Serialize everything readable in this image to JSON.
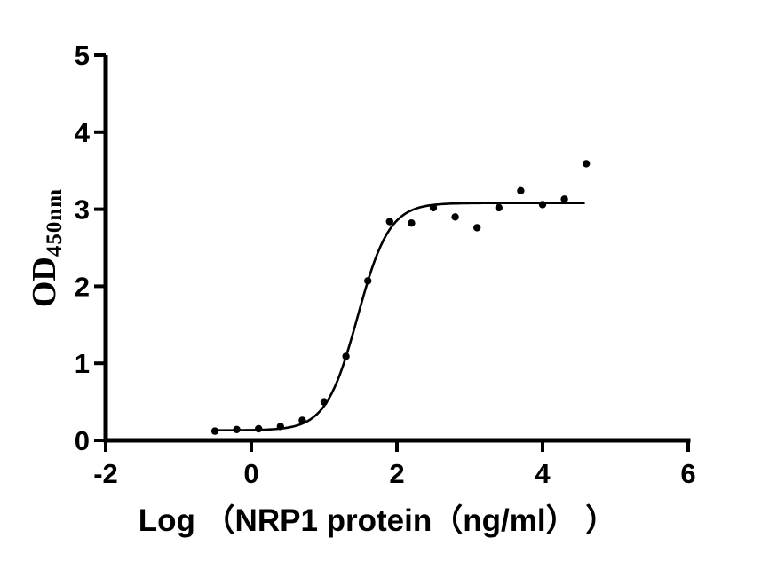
{
  "figure": {
    "background": "#ffffff",
    "foreground": "#000000"
  },
  "chart_data": {
    "type": "scatter",
    "title": "",
    "xlabel": "Log （NRP1 protein（ng/ml） ）",
    "ylabel": "OD",
    "ylabel_subscript": "450nm",
    "xlim": [
      -2,
      6
    ],
    "ylim": [
      0,
      5
    ],
    "xticks": [
      -2,
      0,
      2,
      4,
      6
    ],
    "yticks": [
      0,
      1,
      2,
      3,
      4,
      5
    ],
    "grid": false,
    "legend_position": "none",
    "marker_shape": "circle",
    "marker_color": "#000000",
    "curve_color": "#000000",
    "points": {
      "x": [
        -0.5,
        -0.2,
        0.1,
        0.4,
        0.7,
        1.0,
        1.3,
        1.6,
        1.9,
        2.2,
        2.5,
        2.8,
        3.1,
        3.4,
        3.7,
        4.0,
        4.3,
        4.6
      ],
      "y": [
        0.12,
        0.14,
        0.15,
        0.18,
        0.26,
        0.5,
        1.09,
        2.07,
        2.84,
        2.82,
        3.02,
        2.9,
        2.76,
        3.02,
        3.24,
        3.06,
        3.13,
        3.59
      ]
    },
    "fit_curve": {
      "model": "four-parameter-logistic",
      "bottom": 0.13,
      "top": 3.08,
      "log_ec50": 1.46,
      "hill_slope": 2.0,
      "x_start": -0.5,
      "x_end": 4.6
    }
  }
}
